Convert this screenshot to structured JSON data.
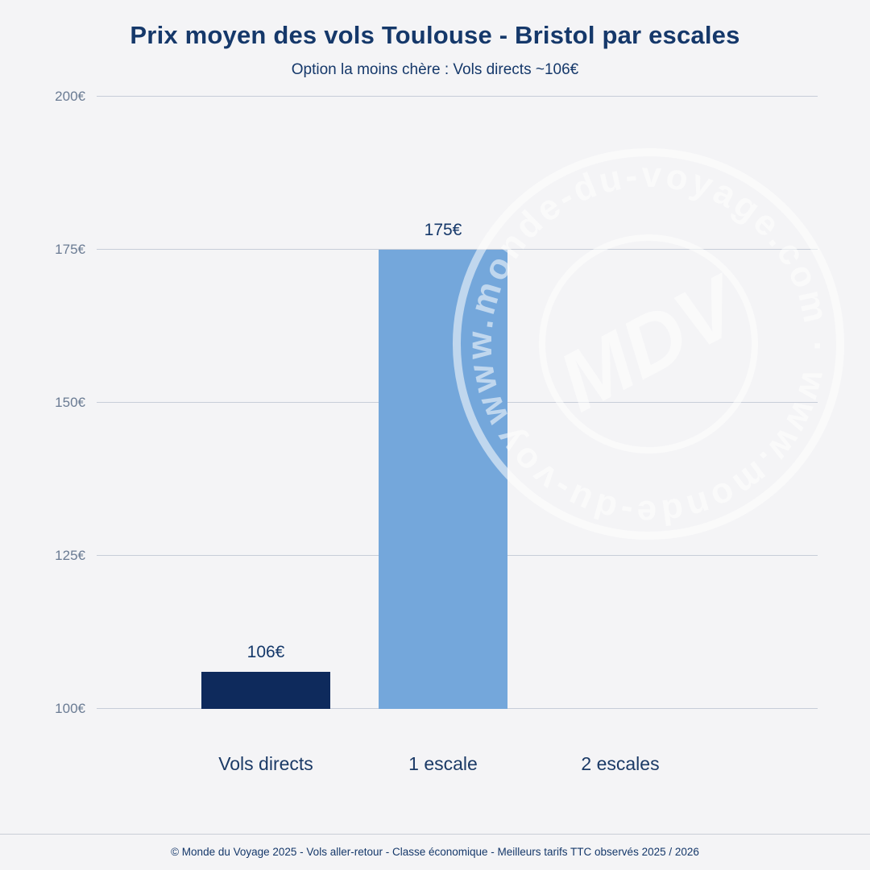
{
  "header": {
    "title": "Prix moyen des vols Toulouse - Bristol par escales",
    "subtitle": "Option la moins chère : Vols directs ~106€"
  },
  "chart_data": {
    "type": "bar",
    "title": "Prix moyen des vols Toulouse - Bristol par escales",
    "subtitle": "Option la moins chère : Vols directs ~106€",
    "categories": [
      "Vols directs",
      "1 escale",
      "2 escales"
    ],
    "values": [
      106,
      175,
      null
    ],
    "value_labels": [
      "106€",
      "175€",
      ""
    ],
    "xlabel": "",
    "ylabel": "",
    "ylim": [
      100,
      200
    ],
    "yticks": [
      100,
      125,
      150,
      175,
      200
    ],
    "ytick_labels": [
      "100€",
      "125€",
      "150€",
      "175€",
      "200€"
    ],
    "grid": true,
    "legend": "none",
    "bar_colors": [
      "#0e2a5c",
      "#74a7db",
      "#74a7db"
    ]
  },
  "watermark": {
    "circle_text": "www.monde-du-voyage.com · www.monde-du-voyage.com ·",
    "center_text": "MDV"
  },
  "footer": {
    "text": "© Monde du Voyage 2025 - Vols aller-retour - Classe économique - Meilleurs tarifs TTC observés 2025 / 2026"
  },
  "colors": {
    "background": "#f4f4f6",
    "title": "#15386a",
    "bar_direct": "#0e2a5c",
    "bar_escale": "#74a7db",
    "gridline": "#c7cdd8",
    "tick_label": "#6a7b93"
  }
}
